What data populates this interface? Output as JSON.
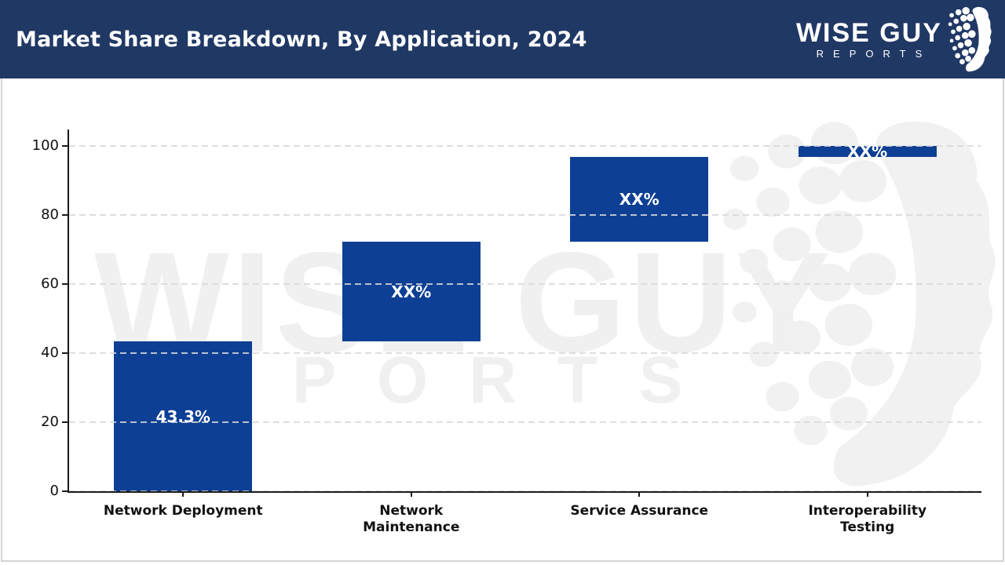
{
  "header": {
    "title": "Market Share Breakdown, By Application, 2024",
    "logo": {
      "line1": "WISE GUY",
      "line2": "REPORTS"
    }
  },
  "watermark": {
    "line1": "WISE GUY",
    "line2": "PORTS"
  },
  "colors": {
    "header_bg": "#203864",
    "bar": "#0d3f94",
    "grid": "#d8d8d8",
    "watermark": "#f0f0f0",
    "bar_label_text": "#ffffff"
  },
  "chart_data": {
    "type": "bar",
    "subtype": "waterfall",
    "title": "Market Share Breakdown, By Application, 2024",
    "categories": [
      "Network Deployment",
      "Network Maintenance",
      "Service Assurance",
      "Interoperability Testing"
    ],
    "category_lines": [
      [
        "Network Deployment"
      ],
      [
        "Network",
        "Maintenance"
      ],
      [
        "Service Assurance"
      ],
      [
        "Interoperability",
        "Testing"
      ]
    ],
    "segments": [
      {
        "category": "Network Deployment",
        "start": 0,
        "end": 43.3,
        "label": "43.3%"
      },
      {
        "category": "Network Maintenance",
        "start": 43.3,
        "end": 72.2,
        "label": "XX%"
      },
      {
        "category": "Service Assurance",
        "start": 72.2,
        "end": 96.8,
        "label": "XX%"
      },
      {
        "category": "Interoperability Testing",
        "start": 96.8,
        "end": 100,
        "label": "XX%"
      }
    ],
    "ylim": [
      0,
      100
    ],
    "yticks": [
      0,
      20,
      40,
      60,
      80,
      100
    ],
    "xlabel": "",
    "ylabel": "",
    "grid": "horizontal-dashed",
    "legend": "none"
  }
}
